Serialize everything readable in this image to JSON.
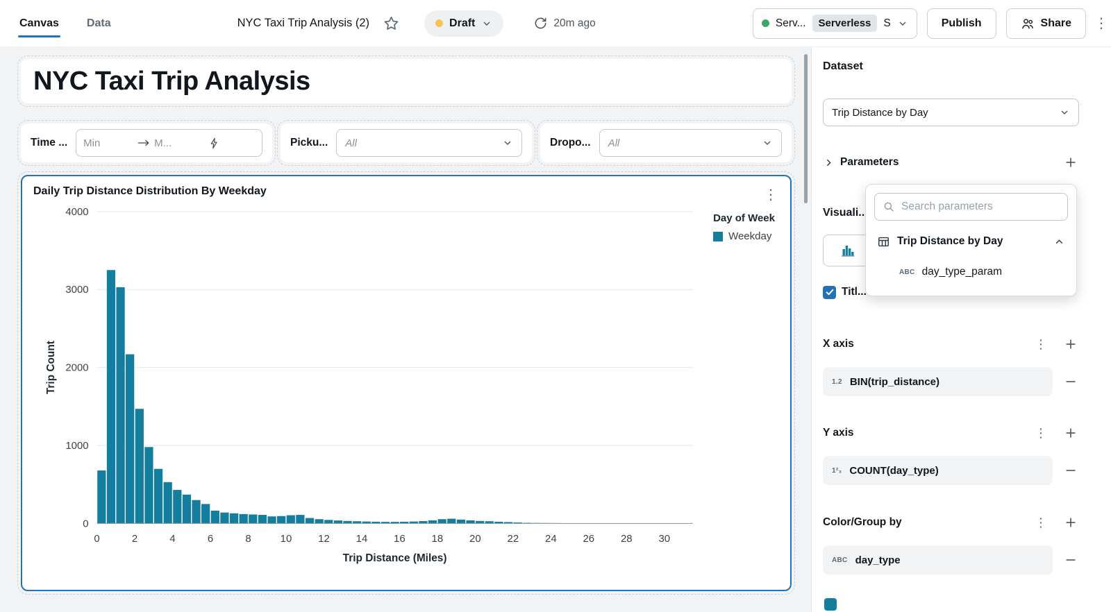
{
  "colors": {
    "accent": "#2272B4",
    "teal": "#137E9E",
    "green": "#3BA864",
    "draft_dot": "#F5C451"
  },
  "topbar": {
    "tabs": [
      {
        "label": "Canvas",
        "active": true
      },
      {
        "label": "Data",
        "active": false
      }
    ],
    "title": "NYC Taxi Trip Analysis (2)",
    "draft_label": "Draft",
    "last_refresh": "20m ago",
    "compute": {
      "label": "Serv...",
      "chip": "Serverless",
      "suffix": "S"
    },
    "publish_label": "Publish",
    "share_label": "Share"
  },
  "canvas": {
    "page_title": "NYC Taxi Trip Analysis",
    "filters": [
      {
        "label": "Time ...",
        "min_placeholder": "Min",
        "max_placeholder": "M..."
      },
      {
        "label": "Picku...",
        "value": "All"
      },
      {
        "label": "Dropo...",
        "value": "All"
      }
    ]
  },
  "chart_data": {
    "type": "bar",
    "title": "Daily Trip Distance Distribution By Weekday",
    "xlabel": "Trip Distance (Miles)",
    "ylabel": "Trip Count",
    "legend_title": "Day of Week",
    "legend_position": "top-right",
    "grid": "horizontal",
    "series": [
      {
        "name": "Weekday",
        "color": "#137E9E"
      }
    ],
    "x_start": 0,
    "bin_width": 0.5,
    "values": [
      680,
      3250,
      3030,
      2170,
      1470,
      980,
      700,
      530,
      430,
      370,
      300,
      250,
      165,
      140,
      130,
      120,
      115,
      110,
      90,
      95,
      105,
      110,
      70,
      55,
      45,
      38,
      32,
      28,
      25,
      22,
      20,
      20,
      22,
      25,
      30,
      40,
      55,
      60,
      50,
      40,
      32,
      28,
      22,
      18,
      12,
      8,
      6,
      5,
      4,
      3,
      3,
      2,
      2,
      2,
      2,
      2,
      2,
      2,
      2,
      2,
      2,
      2
    ],
    "xticks": [
      0,
      2,
      4,
      6,
      8,
      10,
      12,
      14,
      16,
      18,
      20,
      22,
      24,
      26,
      28,
      30
    ],
    "yticks": [
      0,
      1000,
      2000,
      3000,
      4000
    ],
    "ylim": [
      0,
      4000
    ],
    "xlim": [
      0,
      31.5
    ]
  },
  "sidebar": {
    "dataset_label": "Dataset",
    "dataset_value": "Trip Distance by Day",
    "parameters_label": "Parameters",
    "visualization_label": "Visuali...",
    "title_checkbox_label": "Titl...",
    "x_axis": {
      "label": "X axis",
      "icon": "1.2",
      "field": "BIN(trip_distance)"
    },
    "y_axis": {
      "label": "Y axis",
      "icon": "1²₃",
      "field": "COUNT(day_type)"
    },
    "color_group": {
      "label": "Color/Group by",
      "icon": "ABC",
      "field": "day_type"
    }
  },
  "popup": {
    "search_placeholder": "Search parameters",
    "dataset_item": "Trip Distance by Day",
    "param_icon": "ABC",
    "param_item": "day_type_param"
  }
}
